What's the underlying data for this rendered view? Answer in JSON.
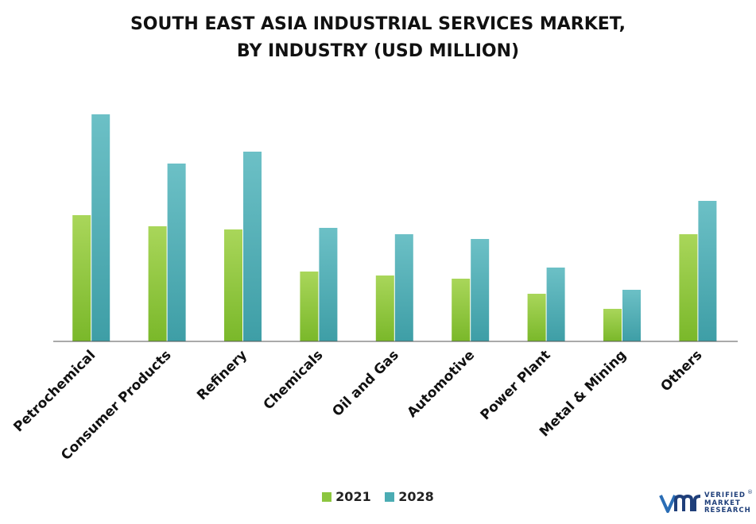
{
  "title_line1": "SOUTH EAST ASIA INDUSTRIAL SERVICES MARKET,",
  "title_line2": "BY INDUSTRY (USD MILLION)",
  "colors": {
    "s2021": "#8cc63f",
    "s2028": "#4bacb3",
    "axis": "#555555"
  },
  "logo": {
    "brand_line1": "VERIFIED",
    "brand_line2": "MARKET",
    "brand_line3": "RESEARCH",
    "reg": "®"
  },
  "chart_data": {
    "type": "bar",
    "title": "SOUTH EAST ASIA INDUSTRIAL SERVICES MARKET, BY INDUSTRY (USD MILLION)",
    "categories": [
      "Petrochemical",
      "Consumer Products",
      "Refinery",
      "Chemicals",
      "Oil and Gas",
      "Automotive",
      "Power Plant",
      "Metal & Mining",
      "Others"
    ],
    "series": [
      {
        "name": "2021",
        "values": [
          159,
          145,
          141,
          88,
          83,
          79,
          60,
          41,
          135
        ]
      },
      {
        "name": "2028",
        "values": [
          286,
          224,
          239,
          143,
          135,
          129,
          93,
          65,
          177
        ]
      }
    ],
    "ylim": [
      0,
      300
    ],
    "legend": "bottom",
    "grid": false
  }
}
